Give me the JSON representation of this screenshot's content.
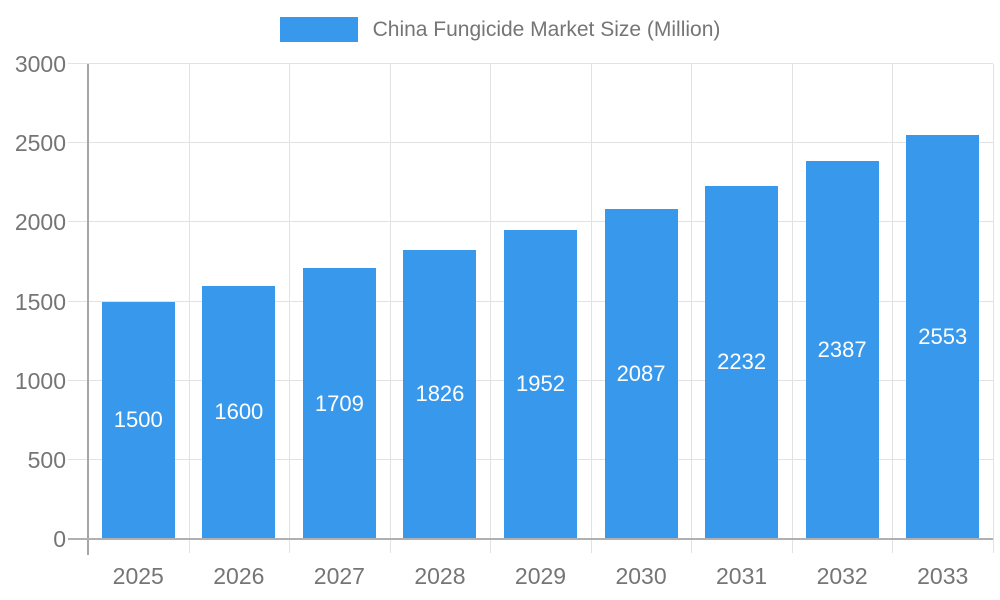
{
  "legend": {
    "label": "China Fungicide Market Size (Million)"
  },
  "chart_data": {
    "type": "bar",
    "title": "China Fungicide Market Size (Million)",
    "categories": [
      "2025",
      "2026",
      "2027",
      "2028",
      "2029",
      "2030",
      "2031",
      "2032",
      "2033"
    ],
    "values": [
      1500,
      1600,
      1709,
      1826,
      1952,
      2087,
      2232,
      2387,
      2553
    ],
    "xlabel": "",
    "ylabel": "",
    "ylim": [
      0,
      3000
    ],
    "yticks": [
      0,
      500,
      1000,
      1500,
      2000,
      2500,
      3000
    ],
    "grid": true,
    "legend_position": "top-center",
    "value_labels": "inside-center-white",
    "colors": {
      "bar": "#3899ec",
      "value_label": "#ffffff",
      "axis_text": "#757575",
      "axis_line": "#a6a6a6",
      "gridline": "#e2e2e2",
      "background": "#ffffff"
    }
  }
}
